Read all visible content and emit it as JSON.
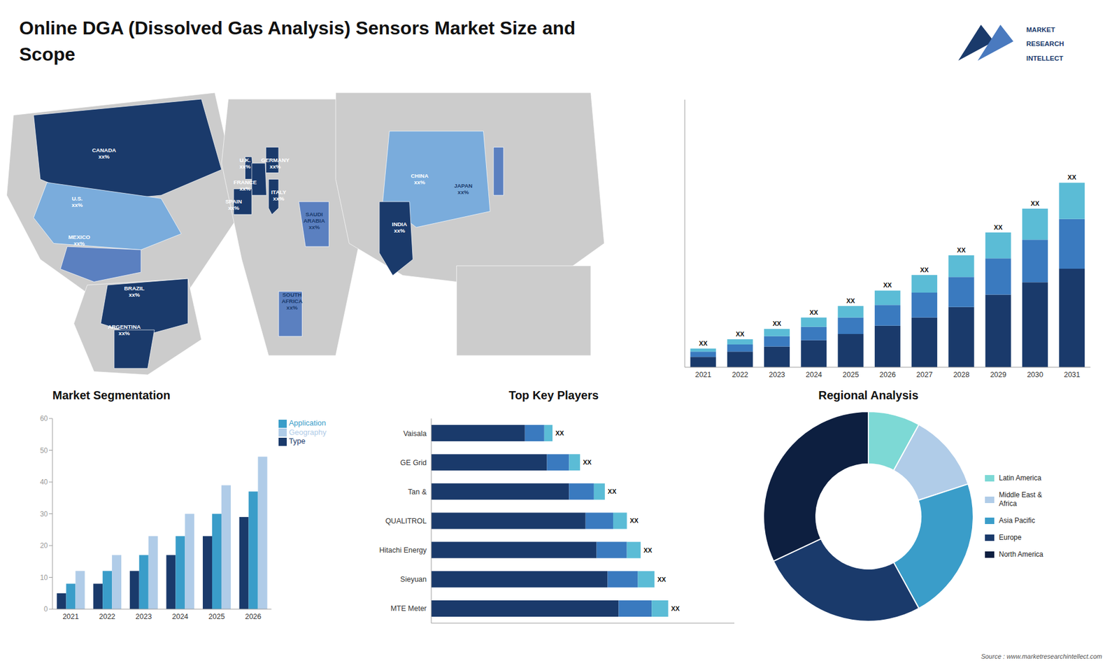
{
  "title": "Online DGA (Dissolved Gas Analysis) Sensors Market Size and\nScope",
  "annotations": [
    {
      "text": "MARKET",
      "color": "#1a3a6b"
    },
    {
      "text": "RESEARCH",
      "color": "#1a3a6b"
    },
    {
      "text": "INTELLECT",
      "color": "#1a3a6b"
    },
    {
      "text": "Source : www.marketresearchintellect.com",
      "color": "#555555"
    }
  ],
  "chart_data": [
    {
      "type": "map",
      "annotations": [
        {
          "text": "CANADA\nxx%",
          "color": "white"
        },
        {
          "text": "U.S.\nxx%",
          "color": "white"
        },
        {
          "text": "MEXICO\nxx%",
          "color": "white"
        },
        {
          "text": "BRAZIL\nxx%",
          "color": "white"
        },
        {
          "text": "ARGENTINA\nxx%",
          "color": "white"
        },
        {
          "text": "U.K.\nxx%",
          "color": "white"
        },
        {
          "text": "FRANCE\nxx%",
          "color": "white"
        },
        {
          "text": "SPAIN\nxx%",
          "color": "white"
        },
        {
          "text": "GERMANY\nxx%",
          "color": "white"
        },
        {
          "text": "ITALY\nxx%",
          "color": "white"
        },
        {
          "text": "SAUDI\nARABIA\nxx%",
          "color": "#1a3a6b"
        },
        {
          "text": "SOUTH\nAFRICA\nxx%",
          "color": "#1a3a6b"
        },
        {
          "text": "CHINA\nxx%",
          "color": "white"
        },
        {
          "text": "INDIA\nxx%",
          "color": "white"
        },
        {
          "text": "JAPAN\nxx%",
          "color": "#1a3a6b"
        }
      ]
    },
    {
      "type": "bar",
      "categories": [
        "2021",
        "2022",
        "2023",
        "2024",
        "2025",
        "2026",
        "2027",
        "2028",
        "2029",
        "2030",
        "2031"
      ],
      "series": [
        {
          "color": "#1a3a6b",
          "values": [
            1.0,
            1.5,
            2.0,
            2.6,
            3.2,
            4.0,
            4.8,
            5.8,
            7.0,
            8.2,
            9.5
          ]
        },
        {
          "color": "#3a7abf",
          "values": [
            0.5,
            0.7,
            1.0,
            1.3,
            1.6,
            2.0,
            2.4,
            2.9,
            3.5,
            4.1,
            4.8
          ]
        },
        {
          "color": "#5bbcd6",
          "values": [
            0.3,
            0.5,
            0.7,
            0.9,
            1.1,
            1.4,
            1.7,
            2.1,
            2.5,
            3.0,
            3.5
          ],
          "value_labels": [
            "XX",
            "XX",
            "XX",
            "XX",
            "XX",
            "XX",
            "XX",
            "XX",
            "XX",
            "XX",
            "XX"
          ]
        }
      ],
      "stacked": true,
      "ylim": [
        0,
        25.81
      ],
      "tick_labels": "x",
      "grid": false
    },
    {
      "type": "bar",
      "title": "Market Segmentation",
      "categories": [
        "2021",
        "2022",
        "2023",
        "2024",
        "2025",
        "2026"
      ],
      "series": [
        {
          "name": "Type",
          "color": "#1a3a6b",
          "values": [
            5,
            8,
            12,
            17,
            23,
            29
          ]
        },
        {
          "name": "Application",
          "color": "#3a9dc9",
          "values": [
            8,
            12,
            17,
            23,
            30,
            37
          ]
        },
        {
          "name": "Geography",
          "color": "#b0cce8",
          "values": [
            12,
            17,
            23,
            30,
            39,
            48
          ]
        }
      ],
      "ylim": [
        0,
        60
      ],
      "yticks": [
        0,
        10,
        20,
        30,
        40,
        50,
        60
      ],
      "legend": "upper right",
      "grid": false
    },
    {
      "type": "bar",
      "title": "Top Key Players",
      "orientation": "horizontal",
      "stacked": true,
      "categories": [
        "MTE Meter",
        "Sieyuan",
        "Hitachi Energy",
        "QUALITROL",
        "Tan &",
        "GE Grid",
        "Vaisala"
      ],
      "series": [
        {
          "color": "#1a3a6b",
          "values": [
            0.68,
            0.64,
            0.6,
            0.56,
            0.5,
            0.42,
            0.34
          ]
        },
        {
          "color": "#3a7abf",
          "values": [
            0.12,
            0.11,
            0.11,
            0.1,
            0.09,
            0.08,
            0.07
          ]
        },
        {
          "color": "#5bbcd6",
          "values": [
            0.06,
            0.06,
            0.05,
            0.05,
            0.04,
            0.04,
            0.03
          ],
          "value_labels": [
            "XX",
            "XX",
            "XX",
            "XX",
            "XX",
            "XX",
            "XX"
          ]
        }
      ],
      "xlim": [
        0,
        1.1
      ],
      "tick_labels": "y",
      "grid": false
    },
    {
      "type": "pie",
      "title": "Regional Analysis",
      "categories": [
        "Latin America",
        "Middle East &\nAfrica",
        "Asia Pacific",
        "Europe",
        "North America"
      ],
      "values": [
        0.08,
        0.12,
        0.22,
        0.26,
        0.32
      ],
      "colors": [
        "#7dd9d5",
        "#b0cce8",
        "#3a9dc9",
        "#1a3a6b",
        "#0d1f40"
      ],
      "legend": "right"
    }
  ]
}
